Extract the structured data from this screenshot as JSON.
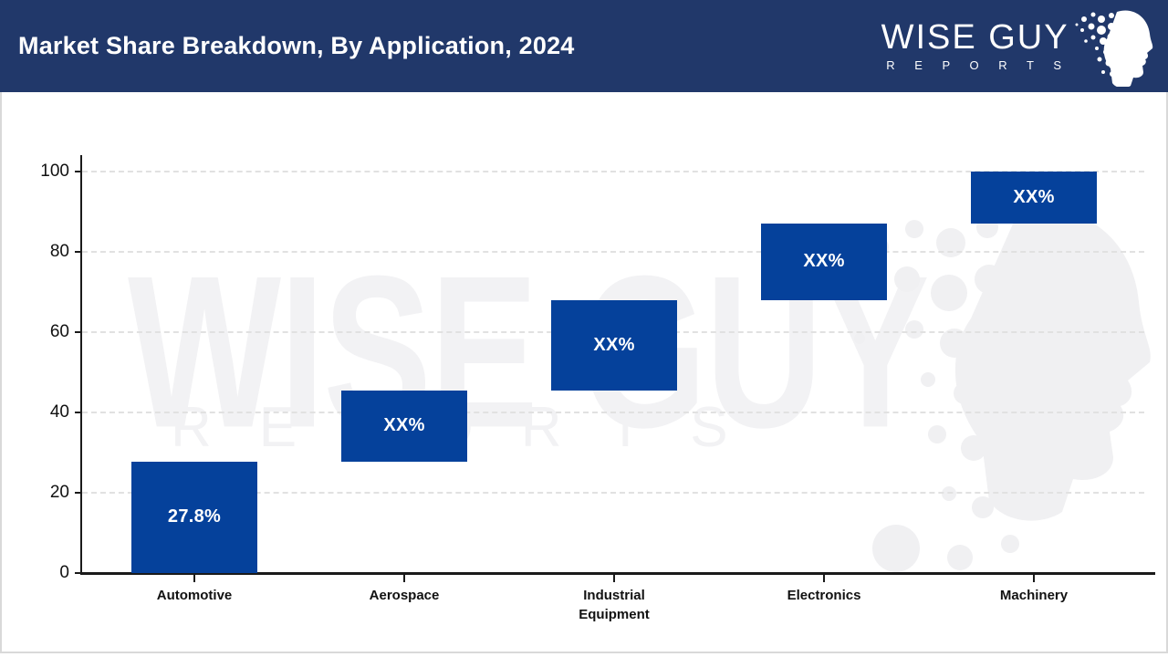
{
  "header": {
    "title": "Market Share Breakdown, By Application, 2024",
    "logo": {
      "line1": "WISE GUY",
      "line2": "R E P O R T S"
    }
  },
  "watermark": {
    "line1": "WISE GUY",
    "line2": "REPORTS"
  },
  "chart_data": {
    "type": "bar",
    "subtype": "waterfall",
    "title": "Market Share Breakdown, By Application, 2024",
    "categories": [
      "Automotive",
      "Aerospace",
      "Industrial Equipment",
      "Electronics",
      "Machinery"
    ],
    "segments": [
      {
        "category": "Automotive",
        "start": 0,
        "end": 27.8,
        "label": "27.8%"
      },
      {
        "category": "Aerospace",
        "start": 27.8,
        "end": 45.5,
        "label": "XX%"
      },
      {
        "category": "Industrial Equipment",
        "start": 45.5,
        "end": 68,
        "label": "XX%"
      },
      {
        "category": "Electronics",
        "start": 68,
        "end": 87,
        "label": "XX%"
      },
      {
        "category": "Machinery",
        "start": 87,
        "end": 100,
        "label": "XX%"
      }
    ],
    "yticks": [
      0,
      20,
      40,
      60,
      80,
      100
    ],
    "ylim": [
      0,
      100
    ],
    "xlabel": "",
    "ylabel": "",
    "grid": "horizontal-dashed",
    "legend": "none",
    "bar_color": "#05419b",
    "bar_label_color": "#ffffff"
  },
  "colors": {
    "header_bg": "#21386a",
    "bar": "#05419b",
    "axis": "#1a1a1a",
    "grid": "#e1e1e1",
    "watermark": "#f2f2f4",
    "panel_border": "#d9d9d9"
  }
}
